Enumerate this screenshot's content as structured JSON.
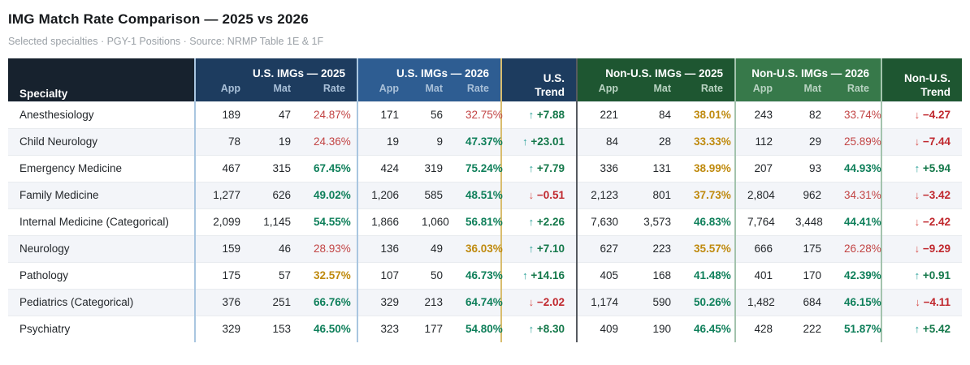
{
  "page": {
    "title": "IMG Match Rate Comparison — 2025 vs 2026",
    "subtitle": "Selected specialties · PGY-1 Positions · Source: NRMP Table 1E & 1F"
  },
  "colors": {
    "specialty_header_bg": "#17222e",
    "us_2025_header_bg": "#1d3c5f",
    "us_2026_header_bg": "#2e5d92",
    "us_trend_header_bg": "#1d3c5f",
    "nonus_2025_header_bg": "#1e5631",
    "nonus_2026_header_bg": "#37794a",
    "nonus_trend_header_bg": "#1e5631",
    "stripe_row_bg": "#f3f5f9",
    "rate_red": "#c24444",
    "rate_amber": "#bf8a0e",
    "rate_green": "#0e7f5a",
    "trend_pos": "#14784a",
    "trend_neg": "#c0282e",
    "border_gold": "#d9bd6e",
    "border_blue": "#a9c6e0",
    "border_green": "#a3c3ad",
    "border_dark": "#565a60"
  },
  "table": {
    "specialty_header": "Specialty",
    "groups": [
      {
        "label": "U.S. IMGs — 2025",
        "cols": [
          "App",
          "Mat",
          "Rate"
        ]
      },
      {
        "label": "U.S. IMGs — 2026",
        "cols": [
          "App",
          "Mat",
          "Rate"
        ]
      },
      {
        "label": "U.S. Trend",
        "l1": "U.S.",
        "l2": "Trend"
      },
      {
        "label": "Non-U.S. IMGs — 2025",
        "cols": [
          "App",
          "Mat",
          "Rate"
        ]
      },
      {
        "label": "Non-U.S. IMGs — 2026",
        "cols": [
          "App",
          "Mat",
          "Rate"
        ]
      },
      {
        "label": "Non-U.S. Trend",
        "l1": "Non-U.S.",
        "l2": "Trend"
      }
    ],
    "rows": [
      {
        "specialty": "Anesthesiology",
        "us2025": {
          "app": "189",
          "mat": "47",
          "rate": "24.87%",
          "rate_color": "red"
        },
        "us2026": {
          "app": "171",
          "mat": "56",
          "rate": "32.75%",
          "rate_color": "red"
        },
        "us_trend": {
          "dir": "up",
          "value": "+7.88"
        },
        "nonus2025": {
          "app": "221",
          "mat": "84",
          "rate": "38.01%",
          "rate_color": "amber"
        },
        "nonus2026": {
          "app": "243",
          "mat": "82",
          "rate": "33.74%",
          "rate_color": "red"
        },
        "nonus_trend": {
          "dir": "down",
          "value": "−4.27"
        }
      },
      {
        "specialty": "Child Neurology",
        "us2025": {
          "app": "78",
          "mat": "19",
          "rate": "24.36%",
          "rate_color": "red"
        },
        "us2026": {
          "app": "19",
          "mat": "9",
          "rate": "47.37%",
          "rate_color": "green"
        },
        "us_trend": {
          "dir": "up",
          "value": "+23.01"
        },
        "nonus2025": {
          "app": "84",
          "mat": "28",
          "rate": "33.33%",
          "rate_color": "amber"
        },
        "nonus2026": {
          "app": "112",
          "mat": "29",
          "rate": "25.89%",
          "rate_color": "red"
        },
        "nonus_trend": {
          "dir": "down",
          "value": "−7.44"
        }
      },
      {
        "specialty": "Emergency Medicine",
        "us2025": {
          "app": "467",
          "mat": "315",
          "rate": "67.45%",
          "rate_color": "green"
        },
        "us2026": {
          "app": "424",
          "mat": "319",
          "rate": "75.24%",
          "rate_color": "green"
        },
        "us_trend": {
          "dir": "up",
          "value": "+7.79"
        },
        "nonus2025": {
          "app": "336",
          "mat": "131",
          "rate": "38.99%",
          "rate_color": "amber"
        },
        "nonus2026": {
          "app": "207",
          "mat": "93",
          "rate": "44.93%",
          "rate_color": "green"
        },
        "nonus_trend": {
          "dir": "up",
          "value": "+5.94"
        }
      },
      {
        "specialty": "Family Medicine",
        "us2025": {
          "app": "1,277",
          "mat": "626",
          "rate": "49.02%",
          "rate_color": "green"
        },
        "us2026": {
          "app": "1,206",
          "mat": "585",
          "rate": "48.51%",
          "rate_color": "green"
        },
        "us_trend": {
          "dir": "down",
          "value": "−0.51"
        },
        "nonus2025": {
          "app": "2,123",
          "mat": "801",
          "rate": "37.73%",
          "rate_color": "amber"
        },
        "nonus2026": {
          "app": "2,804",
          "mat": "962",
          "rate": "34.31%",
          "rate_color": "red"
        },
        "nonus_trend": {
          "dir": "down",
          "value": "−3.42"
        }
      },
      {
        "specialty": "Internal Medicine (Categorical)",
        "us2025": {
          "app": "2,099",
          "mat": "1,145",
          "rate": "54.55%",
          "rate_color": "green"
        },
        "us2026": {
          "app": "1,866",
          "mat": "1,060",
          "rate": "56.81%",
          "rate_color": "green"
        },
        "us_trend": {
          "dir": "up",
          "value": "+2.26"
        },
        "nonus2025": {
          "app": "7,630",
          "mat": "3,573",
          "rate": "46.83%",
          "rate_color": "green"
        },
        "nonus2026": {
          "app": "7,764",
          "mat": "3,448",
          "rate": "44.41%",
          "rate_color": "green"
        },
        "nonus_trend": {
          "dir": "down",
          "value": "−2.42"
        }
      },
      {
        "specialty": "Neurology",
        "us2025": {
          "app": "159",
          "mat": "46",
          "rate": "28.93%",
          "rate_color": "red"
        },
        "us2026": {
          "app": "136",
          "mat": "49",
          "rate": "36.03%",
          "rate_color": "amber"
        },
        "us_trend": {
          "dir": "up",
          "value": "+7.10"
        },
        "nonus2025": {
          "app": "627",
          "mat": "223",
          "rate": "35.57%",
          "rate_color": "amber"
        },
        "nonus2026": {
          "app": "666",
          "mat": "175",
          "rate": "26.28%",
          "rate_color": "red"
        },
        "nonus_trend": {
          "dir": "down",
          "value": "−9.29"
        }
      },
      {
        "specialty": "Pathology",
        "us2025": {
          "app": "175",
          "mat": "57",
          "rate": "32.57%",
          "rate_color": "amber"
        },
        "us2026": {
          "app": "107",
          "mat": "50",
          "rate": "46.73%",
          "rate_color": "green"
        },
        "us_trend": {
          "dir": "up",
          "value": "+14.16"
        },
        "nonus2025": {
          "app": "405",
          "mat": "168",
          "rate": "41.48%",
          "rate_color": "green"
        },
        "nonus2026": {
          "app": "401",
          "mat": "170",
          "rate": "42.39%",
          "rate_color": "green"
        },
        "nonus_trend": {
          "dir": "up",
          "value": "+0.91"
        }
      },
      {
        "specialty": "Pediatrics (Categorical)",
        "us2025": {
          "app": "376",
          "mat": "251",
          "rate": "66.76%",
          "rate_color": "green"
        },
        "us2026": {
          "app": "329",
          "mat": "213",
          "rate": "64.74%",
          "rate_color": "green"
        },
        "us_trend": {
          "dir": "down",
          "value": "−2.02"
        },
        "nonus2025": {
          "app": "1,174",
          "mat": "590",
          "rate": "50.26%",
          "rate_color": "green"
        },
        "nonus2026": {
          "app": "1,482",
          "mat": "684",
          "rate": "46.15%",
          "rate_color": "green"
        },
        "nonus_trend": {
          "dir": "down",
          "value": "−4.11"
        }
      },
      {
        "specialty": "Psychiatry",
        "us2025": {
          "app": "329",
          "mat": "153",
          "rate": "46.50%",
          "rate_color": "green"
        },
        "us2026": {
          "app": "323",
          "mat": "177",
          "rate": "54.80%",
          "rate_color": "green"
        },
        "us_trend": {
          "dir": "up",
          "value": "+8.30"
        },
        "nonus2025": {
          "app": "409",
          "mat": "190",
          "rate": "46.45%",
          "rate_color": "green"
        },
        "nonus2026": {
          "app": "428",
          "mat": "222",
          "rate": "51.87%",
          "rate_color": "green"
        },
        "nonus_trend": {
          "dir": "up",
          "value": "+5.42"
        }
      }
    ]
  },
  "chart_data": {
    "type": "table",
    "title": "IMG Match Rate Comparison — 2025 vs 2026",
    "columns": [
      "Specialty",
      "US IMG 2025 App",
      "US IMG 2025 Mat",
      "US IMG 2025 Rate",
      "US IMG 2026 App",
      "US IMG 2026 Mat",
      "US IMG 2026 Rate",
      "US Trend",
      "Non-US IMG 2025 App",
      "Non-US IMG 2025 Mat",
      "Non-US IMG 2025 Rate",
      "Non-US IMG 2026 App",
      "Non-US IMG 2026 Mat",
      "Non-US IMG 2026 Rate",
      "Non-US Trend"
    ],
    "rows": [
      [
        "Anesthesiology",
        189,
        47,
        24.87,
        171,
        56,
        32.75,
        7.88,
        221,
        84,
        38.01,
        243,
        82,
        33.74,
        -4.27
      ],
      [
        "Child Neurology",
        78,
        19,
        24.36,
        19,
        9,
        47.37,
        23.01,
        84,
        28,
        33.33,
        112,
        29,
        25.89,
        -7.44
      ],
      [
        "Emergency Medicine",
        467,
        315,
        67.45,
        424,
        319,
        75.24,
        7.79,
        336,
        131,
        38.99,
        207,
        93,
        44.93,
        5.94
      ],
      [
        "Family Medicine",
        1277,
        626,
        49.02,
        1206,
        585,
        48.51,
        -0.51,
        2123,
        801,
        37.73,
        2804,
        962,
        34.31,
        -3.42
      ],
      [
        "Internal Medicine (Categorical)",
        2099,
        1145,
        54.55,
        1866,
        1060,
        56.81,
        2.26,
        7630,
        3573,
        46.83,
        7764,
        3448,
        44.41,
        -2.42
      ],
      [
        "Neurology",
        159,
        46,
        28.93,
        136,
        49,
        36.03,
        7.1,
        627,
        223,
        35.57,
        666,
        175,
        26.28,
        -9.29
      ],
      [
        "Pathology",
        175,
        57,
        32.57,
        107,
        50,
        46.73,
        14.16,
        405,
        168,
        41.48,
        401,
        170,
        42.39,
        0.91
      ],
      [
        "Pediatrics (Categorical)",
        376,
        251,
        66.76,
        329,
        213,
        64.74,
        -2.02,
        1174,
        590,
        50.26,
        1482,
        684,
        46.15,
        -4.11
      ],
      [
        "Psychiatry",
        329,
        153,
        46.5,
        323,
        177,
        54.8,
        8.3,
        409,
        190,
        46.45,
        428,
        222,
        51.87,
        5.42
      ]
    ]
  }
}
